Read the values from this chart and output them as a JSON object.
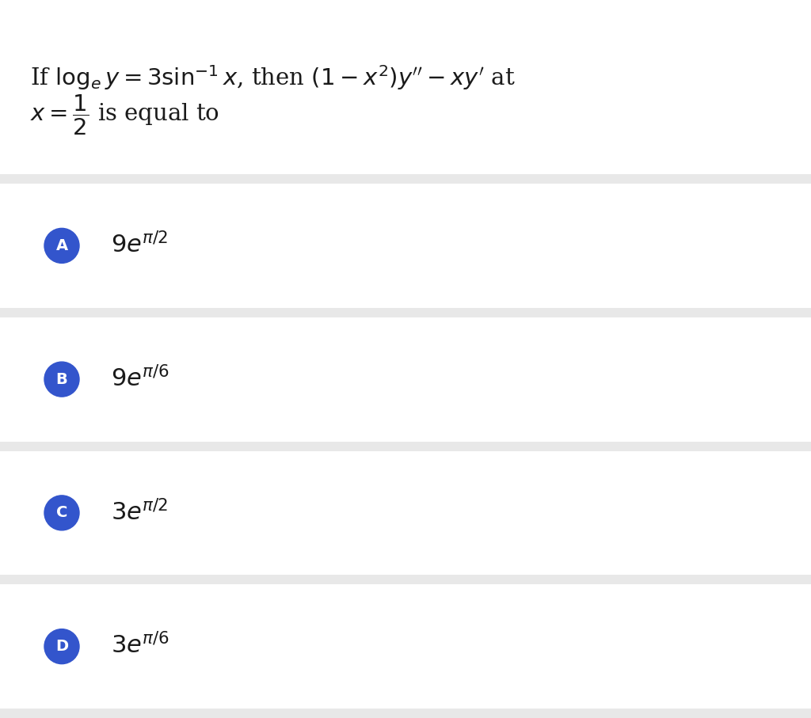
{
  "background_color": "#e8e8e8",
  "question_bg": "#ffffff",
  "option_bg": "#ffffff",
  "separator_color": "#e0e0e0",
  "circle_color": "#3355cc",
  "circle_text_color": "#ffffff",
  "text_color": "#1a1a1a",
  "question_fontsize": 21,
  "option_fontsize": 22,
  "circle_fontsize": 14,
  "options": [
    {
      "label": "A",
      "text": "$9e^{\\pi/2}$"
    },
    {
      "label": "B",
      "text": "$9e^{\\pi/6}$"
    },
    {
      "label": "C",
      "text": "$3e^{\\pi/2}$"
    },
    {
      "label": "D",
      "text": "$3e^{\\pi/6}$"
    }
  ]
}
